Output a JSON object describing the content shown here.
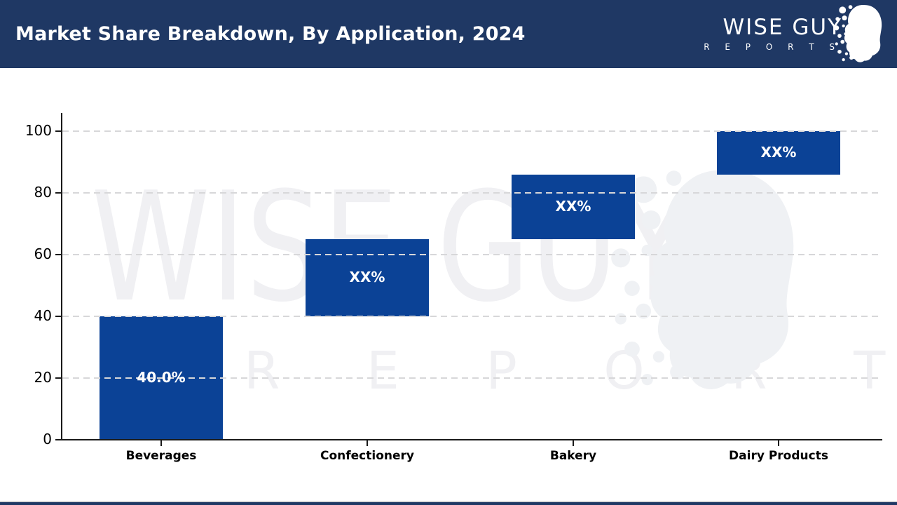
{
  "header": {
    "title": "Market Share Breakdown, By Application, 2024",
    "logo": {
      "line1": "WISE GUY",
      "line2": "R E P O R T S"
    }
  },
  "watermark": {
    "line1": "WISE GUY",
    "line2": "R E P O R T S"
  },
  "colors": {
    "header_bg": "#1f3864",
    "bar": "#0b4296",
    "grid": "#d7d7d9",
    "axis": "#1a1a1a",
    "watermark": "#f0f0f3",
    "title_text": "#ffffff",
    "bar_label_text": "#ffffff",
    "footer_bar": "#1f3864"
  },
  "chart_data": {
    "type": "bar",
    "subtype": "waterfall",
    "title": "Market Share Breakdown, By Application, 2024",
    "categories": [
      "Beverages",
      "Confectionery",
      "Bakery",
      "Dairy Products"
    ],
    "series": [
      {
        "name": "Market Share",
        "segments": [
          {
            "category": "Beverages",
            "start": 0,
            "end": 40,
            "label": "40.0%"
          },
          {
            "category": "Confectionery",
            "start": 40,
            "end": 65,
            "label": "XX%"
          },
          {
            "category": "Bakery",
            "start": 65,
            "end": 86,
            "label": "XX%"
          },
          {
            "category": "Dairy Products",
            "start": 86,
            "end": 100,
            "label": "XX%"
          }
        ]
      }
    ],
    "xlabel": "",
    "ylabel": "",
    "ylim": [
      0,
      100
    ],
    "yticks": [
      0,
      20,
      40,
      60,
      80,
      100
    ],
    "grid": "horizontal-dashed",
    "legend": "none"
  }
}
